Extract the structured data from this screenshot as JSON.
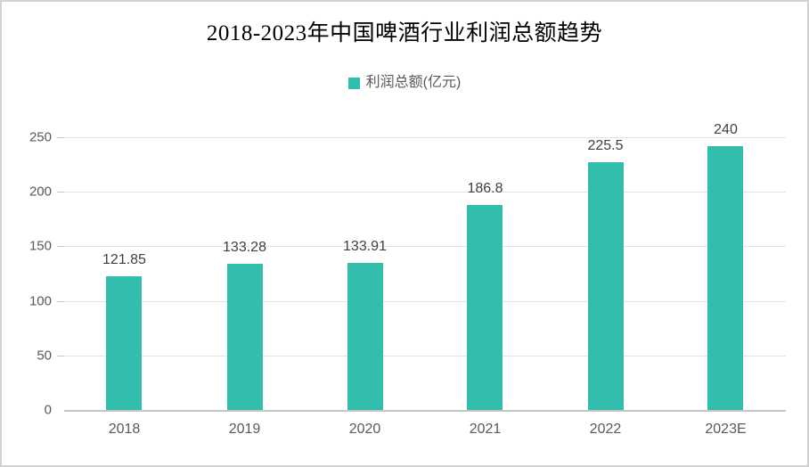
{
  "frame": {
    "background": "#ffffff",
    "border_color": "#d2d2d2"
  },
  "chart_data": {
    "type": "bar",
    "title": "2018-2023年中国啤酒行业利润总额趋势",
    "legend": {
      "label": "利润总额(亿元)",
      "position": "top"
    },
    "categories": [
      "2018",
      "2019",
      "2020",
      "2021",
      "2022",
      "2023E"
    ],
    "values": [
      121.85,
      133.28,
      133.91,
      186.8,
      225.5,
      240
    ],
    "value_labels": [
      "121.85",
      "133.28",
      "133.91",
      "186.8",
      "225.5",
      "240"
    ],
    "xlabel": "",
    "ylabel": "",
    "yticks": [
      0,
      50,
      100,
      150,
      200,
      250
    ],
    "ylim": [
      0,
      250
    ],
    "grid": true,
    "colors": {
      "bar": "#31beac",
      "title_text": "#000000",
      "axis_text": "#595959",
      "value_label_text": "#404040",
      "gridline": "#e2e2e2",
      "axis_line": "#c6c6c6"
    }
  }
}
